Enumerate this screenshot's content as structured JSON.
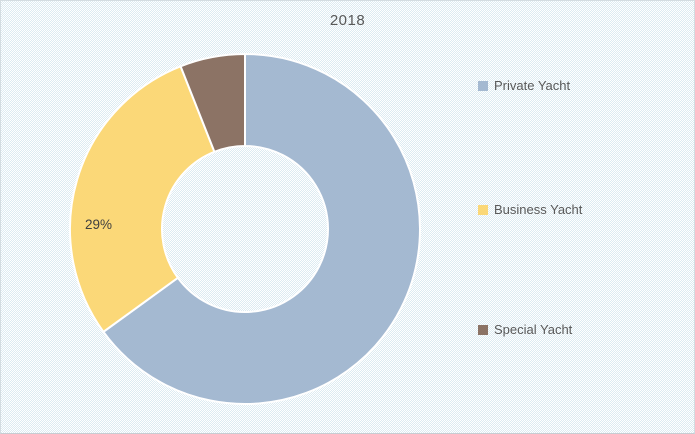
{
  "frame": {
    "background_checker_color": "#dcebf2",
    "border_color": "#d3dce1"
  },
  "chart_data": {
    "type": "pie",
    "subtype": "doughnut",
    "title": "2018",
    "categories": [
      "Private Yacht",
      "Business Yacht",
      "Special Yacht"
    ],
    "values": [
      65,
      29,
      6
    ],
    "unit": "percent",
    "colors": [
      "#a4b9d1",
      "#fbd878",
      "#8c7365"
    ],
    "start_angle_deg": 0,
    "direction": "clockwise",
    "hole_ratio": 0.474,
    "segment_gap_color": "#ffffff",
    "legend_position": "right",
    "data_labels": [
      {
        "segment": "Business Yacht",
        "text": "29%"
      }
    ],
    "title_color": "#595959",
    "legend_text_color": "#595959",
    "data_label_color": "#3f3f3f"
  }
}
